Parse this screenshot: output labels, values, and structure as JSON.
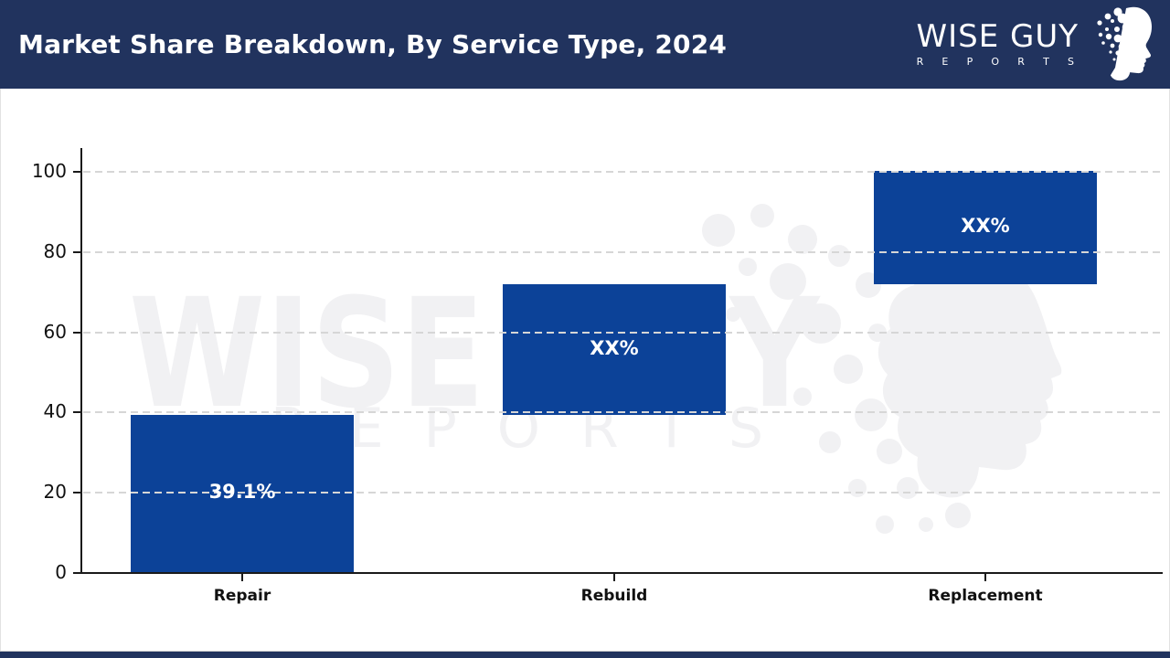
{
  "header": {
    "title": "Market Share Breakdown, By Service Type, 2024",
    "logo": {
      "line1": "WISE GUY",
      "line2": "REPORTS"
    }
  },
  "watermark": {
    "line1": "WISE GUY",
    "line2": "REPORTS"
  },
  "chart_data": {
    "type": "bar",
    "variant": "waterfall",
    "title": "Market Share Breakdown, By Service Type, 2024",
    "categories": [
      "Repair",
      "Rebuild",
      "Replacement"
    ],
    "segments": [
      {
        "category": "Repair",
        "from": 0,
        "to": 39.1,
        "label": "39.1%"
      },
      {
        "category": "Rebuild",
        "from": 39.1,
        "to": 71.8,
        "label": "XX%"
      },
      {
        "category": "Replacement",
        "from": 71.8,
        "to": 100,
        "label": "XX%"
      }
    ],
    "ylim": [
      0,
      100
    ],
    "yticks": [
      0,
      20,
      40,
      60,
      80,
      100
    ],
    "grid": "horizontal-dashed",
    "legend_position": "none"
  },
  "colors": {
    "header_bg": "#21335e",
    "footer_bg": "#21335e",
    "bar": "#0c4298",
    "bar_label": "#ffffff",
    "grid": "#d6d6d6",
    "axis": "#1a1a1a",
    "watermark": "#f1f1f3"
  }
}
